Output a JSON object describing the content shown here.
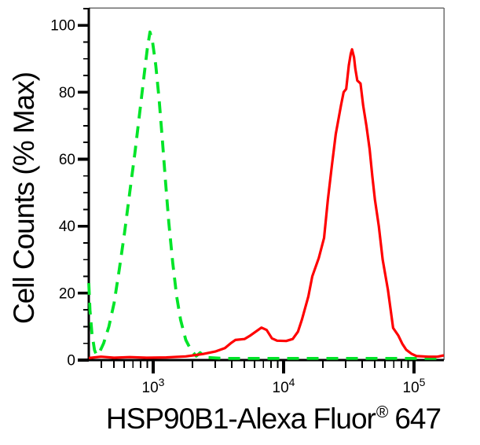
{
  "figure": {
    "x_title_main": "HSP90B1-Alexa Fluor",
    "x_title_reg": "®",
    "x_title_suffix": "647"
  },
  "chart_data": {
    "type": "line",
    "subtype": "flow-cytometry-histogram-overlay",
    "title": "",
    "xlabel": "HSP90B1-Alexa Fluor® 647",
    "ylabel": "Cell Counts (% Max)",
    "x_scale": "log10",
    "xlim_log10": [
      2.506,
      5.229
    ],
    "ylim": [
      0,
      105.2
    ],
    "grid": false,
    "legend": "none",
    "frame_color": "#6e6e6e",
    "axis_color": "#000000",
    "x_axis": {
      "major_tick_label_base": "10",
      "major_ticks_log10": [
        3,
        4,
        5
      ],
      "major_tick_label_exponents": [
        "3",
        "4",
        "5"
      ],
      "minor_ticks_log10": [
        2.602,
        2.699,
        2.778,
        2.845,
        2.903,
        2.954,
        3.301,
        3.477,
        3.602,
        3.699,
        3.778,
        3.845,
        3.903,
        3.954,
        4.301,
        4.477,
        4.602,
        4.699,
        4.778,
        4.845,
        4.903,
        4.954
      ]
    },
    "y_axis": {
      "major_ticks": [
        0,
        20,
        40,
        60,
        80,
        100
      ],
      "major_tick_labels": [
        "0",
        "20",
        "40",
        "60",
        "80",
        "100"
      ],
      "minor_ticks": [
        5,
        10,
        15,
        25,
        30,
        35,
        45,
        50,
        55,
        65,
        70,
        75,
        85,
        90,
        95,
        105
      ]
    },
    "series": [
      {
        "name": "green-dashed-control",
        "color": "#00e428",
        "style": "dashed",
        "width": 3.8,
        "peak": {
          "x_log10": 2.975,
          "x_value": 944,
          "y_percent": 98
        },
        "points": [
          [
            2.506,
            23
          ],
          [
            2.515,
            15
          ],
          [
            2.53,
            8
          ],
          [
            2.55,
            3
          ],
          [
            2.565,
            1.5
          ],
          [
            2.59,
            2.5
          ],
          [
            2.62,
            5
          ],
          [
            2.66,
            10
          ],
          [
            2.7,
            17
          ],
          [
            2.74,
            27
          ],
          [
            2.78,
            38
          ],
          [
            2.82,
            50
          ],
          [
            2.86,
            62
          ],
          [
            2.9,
            75
          ],
          [
            2.93,
            85
          ],
          [
            2.955,
            93
          ],
          [
            2.975,
            98
          ],
          [
            2.995,
            95
          ],
          [
            3.02,
            88
          ],
          [
            3.045,
            78
          ],
          [
            3.07,
            66
          ],
          [
            3.095,
            53
          ],
          [
            3.12,
            41
          ],
          [
            3.15,
            29
          ],
          [
            3.18,
            19
          ],
          [
            3.21,
            12
          ],
          [
            3.25,
            6
          ],
          [
            3.29,
            3
          ],
          [
            3.33,
            1.2
          ],
          [
            3.36,
            2.2
          ],
          [
            3.4,
            0.8
          ],
          [
            3.55,
            0.5
          ],
          [
            3.75,
            0.5
          ],
          [
            3.95,
            0.5
          ],
          [
            4.15,
            0.5
          ],
          [
            4.35,
            0.5
          ],
          [
            4.55,
            0.5
          ],
          [
            4.75,
            0.5
          ],
          [
            4.95,
            0.5
          ],
          [
            5.12,
            0.5
          ],
          [
            5.229,
            0.5
          ]
        ]
      },
      {
        "name": "red-solid-stained",
        "color": "#ff0000",
        "style": "solid",
        "width": 3.2,
        "peak": {
          "x_log10": 4.525,
          "x_value": 33500,
          "y_percent": 92.8
        },
        "points": [
          [
            2.506,
            0.6
          ],
          [
            2.6,
            1.0
          ],
          [
            2.7,
            0.7
          ],
          [
            2.82,
            0.9
          ],
          [
            2.95,
            0.7
          ],
          [
            3.1,
            0.8
          ],
          [
            3.25,
            1.1
          ],
          [
            3.38,
            1.8
          ],
          [
            3.48,
            2.6
          ],
          [
            3.55,
            3.6
          ],
          [
            3.6,
            5.2
          ],
          [
            3.63,
            6.0
          ],
          [
            3.7,
            6.3
          ],
          [
            3.74,
            7.2
          ],
          [
            3.79,
            8.6
          ],
          [
            3.83,
            9.7
          ],
          [
            3.87,
            9.0
          ],
          [
            3.91,
            6.5
          ],
          [
            3.95,
            5.8
          ],
          [
            4.02,
            5.7
          ],
          [
            4.07,
            6.3
          ],
          [
            4.11,
            8.5
          ],
          [
            4.14,
            12
          ],
          [
            4.19,
            19
          ],
          [
            4.22,
            25
          ],
          [
            4.27,
            30.5
          ],
          [
            4.31,
            36.5
          ],
          [
            4.34,
            48
          ],
          [
            4.37,
            58
          ],
          [
            4.4,
            67.5
          ],
          [
            4.44,
            76
          ],
          [
            4.46,
            80
          ],
          [
            4.48,
            81
          ],
          [
            4.5,
            88
          ],
          [
            4.515,
            91.5
          ],
          [
            4.525,
            92.8
          ],
          [
            4.54,
            90.5
          ],
          [
            4.55,
            87
          ],
          [
            4.565,
            83.5
          ],
          [
            4.59,
            82.6
          ],
          [
            4.61,
            76
          ],
          [
            4.635,
            70
          ],
          [
            4.66,
            63
          ],
          [
            4.68,
            55
          ],
          [
            4.7,
            48
          ],
          [
            4.73,
            40
          ],
          [
            4.76,
            30
          ],
          [
            4.8,
            21
          ],
          [
            4.84,
            9.6
          ],
          [
            4.88,
            7.3
          ],
          [
            4.91,
            4.9
          ],
          [
            4.94,
            3.1
          ],
          [
            4.98,
            1.9
          ],
          [
            5.02,
            1.2
          ],
          [
            5.11,
            1.0
          ],
          [
            5.18,
            1.0
          ],
          [
            5.229,
            1.4
          ]
        ]
      }
    ]
  }
}
